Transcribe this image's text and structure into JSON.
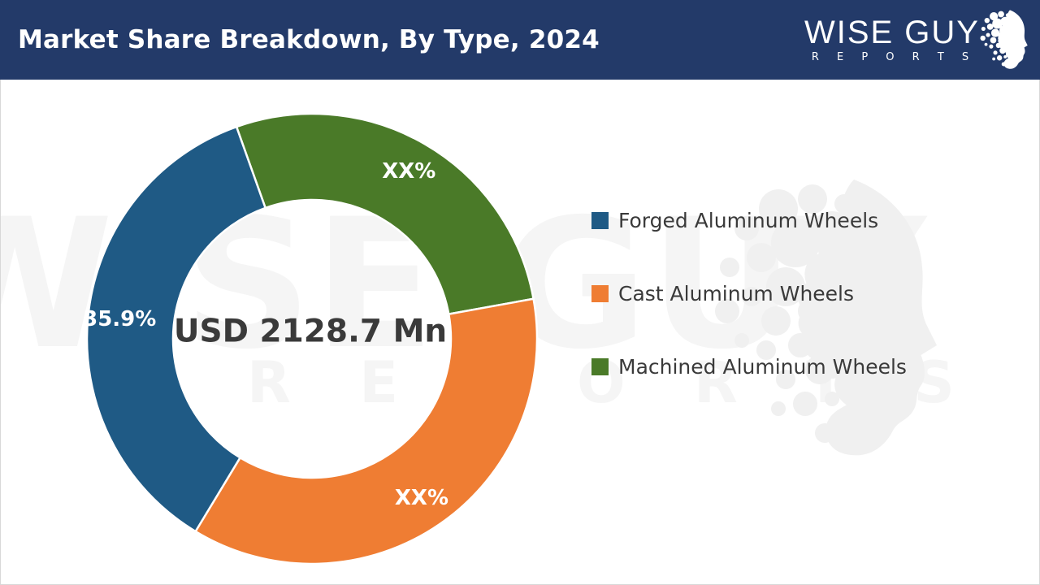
{
  "header": {
    "title": "Market Share Breakdown, By Type, 2024",
    "logo": {
      "line1": "WISE GUY",
      "line2": "R E P O R T S"
    }
  },
  "watermark": {
    "line1": "WISE GUY",
    "line2": "R E P O R T S"
  },
  "chart_data": {
    "type": "pie",
    "subtype": "donut",
    "title": "Market Share Breakdown, By Type, 2024",
    "center_label": "USD 2128.7 Mn",
    "total_value": "USD 2128.7 Mn",
    "start_angle_deg": -19.6,
    "legend_position": "right",
    "segments": [
      {
        "name": "Machined Aluminum Wheels",
        "display_label": "XX%",
        "share_pct_est": 27.6,
        "color": "#4A7A28"
      },
      {
        "name": "Cast Aluminum Wheels",
        "display_label": "XX%",
        "share_pct_est": 36.5,
        "color": "#EF7D33"
      },
      {
        "name": "Forged Aluminum Wheels",
        "display_label": "35.9%",
        "share_pct_est": 35.9,
        "color": "#1F5A85"
      }
    ]
  },
  "legend": {
    "items": [
      {
        "label": "Forged Aluminum Wheels",
        "color": "#1F5A85"
      },
      {
        "label": "Cast Aluminum Wheels",
        "color": "#EF7D33"
      },
      {
        "label": "Machined Aluminum Wheels",
        "color": "#4A7A28"
      }
    ]
  },
  "colors": {
    "header_bg": "#233A69",
    "blue": "#1F5A85",
    "orange": "#EF7D33",
    "green": "#4A7A28",
    "text_dark": "#3A3A3A",
    "watermark": "#F5F5F5"
  }
}
